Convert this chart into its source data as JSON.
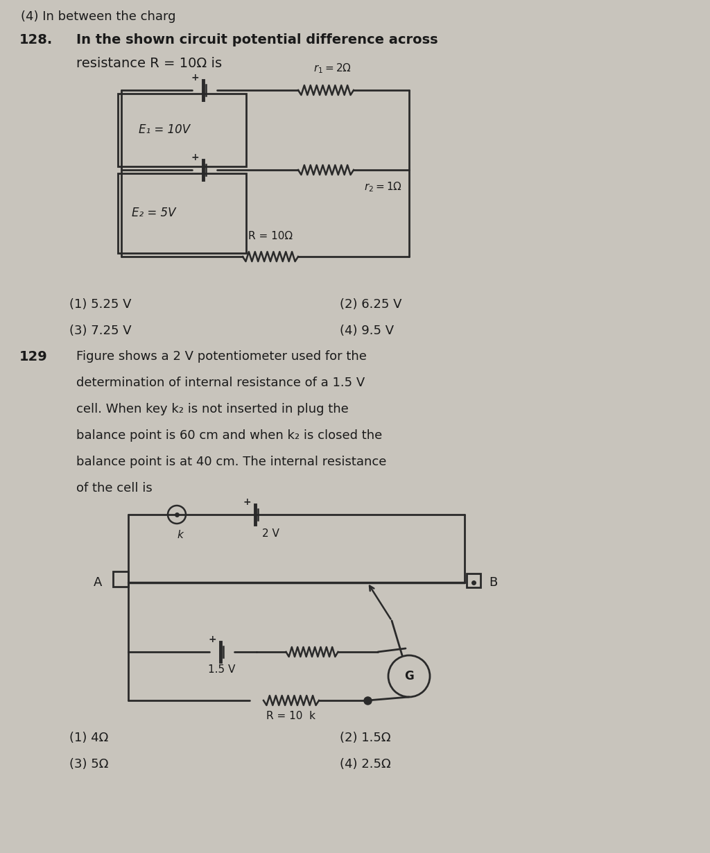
{
  "bg_color": "#c8c4bc",
  "text_color": "#1a1a1a",
  "line_color": "#2a2a2a",
  "partial_top": "(4) In between the charg",
  "q128_num": "128.",
  "q128_line1": "In the shown circuit potential difference across",
  "q128_line2": "resistance R = 10Ω is",
  "q128_r1_label": "$r_1 = 2\\Omega$",
  "q128_r2_label": "$r_2 = 1\\Omega$",
  "q128_R_label": "R = 10Ω",
  "q128_E1_label": "E₁ = 10V",
  "q128_E2_label": "E₂ = 5V",
  "q128_opt1": "(1) 5.25 V",
  "q128_opt2": "(2) 6.25 V",
  "q128_opt3": "(3) 7.25 V",
  "q128_opt4": "(4) 9.5 V",
  "q129_num": "129",
  "q129_line1": "Figure shows a 2 V potentiometer used for the",
  "q129_line2": "determination of internal resistance of a 1.5 V",
  "q129_line3": "cell. When key k₂ is not inserted in plug the",
  "q129_line4": "balance point is 60 cm and when k₂ is closed the",
  "q129_line5": "balance point is at 40 cm. The internal resistance",
  "q129_line6": "of the cell is",
  "q129_2V_label": "2 V",
  "q129_k_label": "k",
  "q129_A_label": "A",
  "q129_B_label": "B",
  "q129_G_label": "G",
  "q129_15V_label": "1.5 V",
  "q129_R_label": "R = 10  k",
  "q129_opt1": "(1) 4Ω",
  "q129_opt2": "(2) 1.5Ω",
  "q129_opt3": "(3) 5Ω",
  "q129_opt4": "(4) 2.5Ω"
}
